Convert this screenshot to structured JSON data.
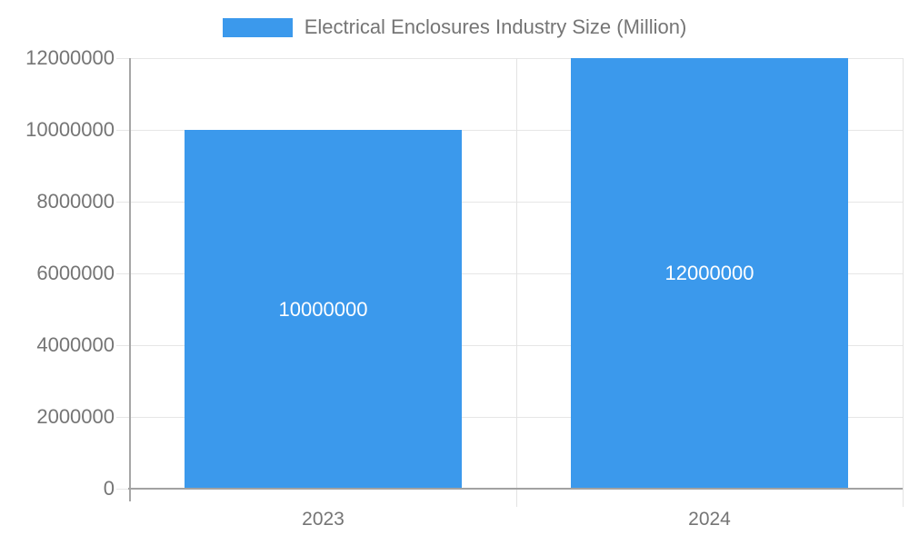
{
  "page": {
    "background": "#ffffff"
  },
  "legend": {
    "label": "Electrical Enclosures Industry Size (Million)"
  },
  "chart_data": {
    "type": "bar",
    "title": "Electrical Enclosures Industry Size (Million)",
    "categories": [
      "2023",
      "2024"
    ],
    "series": [
      {
        "name": "Electrical Enclosures Industry Size (Million)",
        "values": [
          10000000,
          12000000
        ]
      }
    ],
    "bar_value_labels": [
      "10000000",
      "12000000"
    ],
    "xlabel": "",
    "ylabel": "",
    "ylim": [
      0,
      12000000
    ],
    "yticks": [
      0,
      2000000,
      4000000,
      6000000,
      8000000,
      10000000,
      12000000
    ],
    "ytick_labels": [
      "0",
      "2000000",
      "4000000",
      "6000000",
      "8000000",
      "10000000",
      "12000000"
    ],
    "grid": true,
    "legend_position": "top",
    "colors": {
      "bar": "#3B99EC",
      "bar_label": "#ffffff",
      "axis_text": "#757575",
      "gridline": "#e6e6e6",
      "axis_line": "#a2a2a2",
      "background": "#ffffff"
    }
  }
}
